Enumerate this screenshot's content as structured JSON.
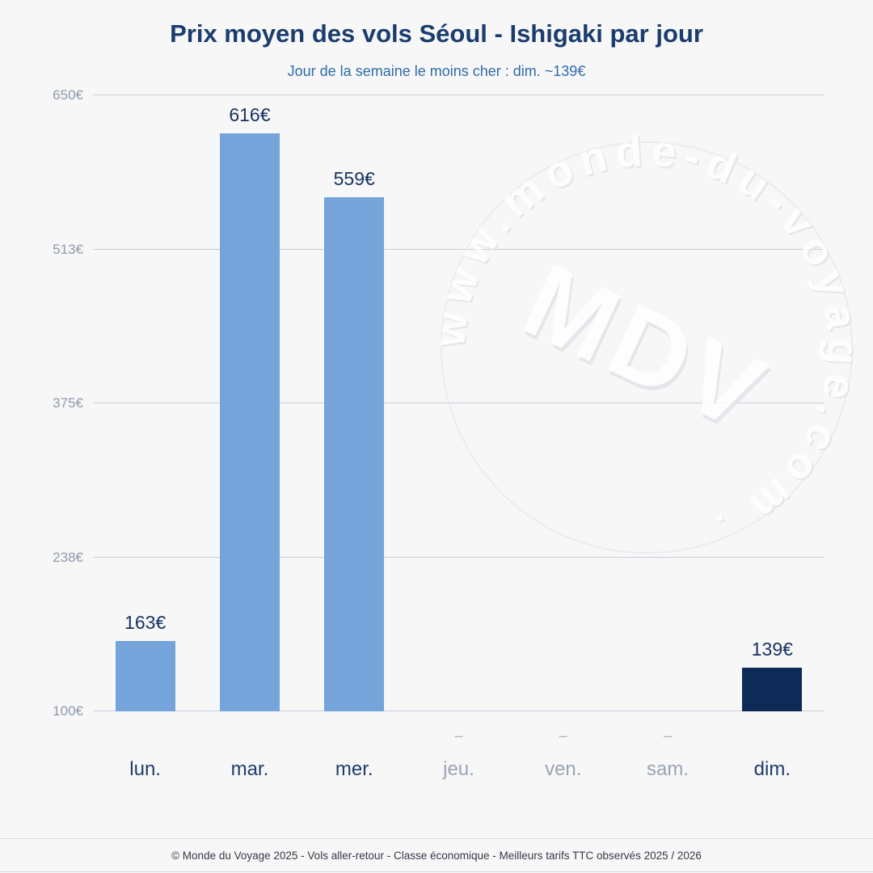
{
  "title": "Prix moyen des vols Séoul - Ishigaki par jour",
  "subtitle": "Jour de la semaine le moins cher : dim. ~139€",
  "footer": "© Monde du Voyage 2025 - Vols aller-retour - Classe économique - Meilleurs tarifs TTC observés 2025 / 2026",
  "watermark": {
    "circle_text": "www.monde-du-voyage.com .",
    "center_text": "MDV"
  },
  "colors": {
    "bar": "#74a4d9",
    "bar_highlight": "#0e2a57",
    "grid": "#c7cfdb",
    "title": "#1b3d6d",
    "subtitle": "#2f6ca8",
    "axis_label": "#8f9aa9",
    "day_active": "#1d3c69",
    "day_inactive": "#9aa4b2",
    "background": "#f7f7f8"
  },
  "chart_data": {
    "type": "bar",
    "title": "Prix moyen des vols Séoul - Ishigaki par jour",
    "categories": [
      "lun.",
      "mar.",
      "mer.",
      "jeu.",
      "ven.",
      "sam.",
      "dim."
    ],
    "values": [
      163,
      616,
      559,
      null,
      null,
      null,
      139
    ],
    "value_labels": [
      "163€",
      "616€",
      "559€",
      null,
      null,
      null,
      "139€"
    ],
    "no_data_marker": "–",
    "highlight_index": 6,
    "ylabel_ticks": [
      "650€",
      "513€",
      "375€",
      "238€",
      "100€"
    ],
    "ytick_values": [
      650,
      512.5,
      375,
      237.5,
      100
    ],
    "ylim": [
      100,
      650
    ],
    "grid": true,
    "legend": false
  }
}
